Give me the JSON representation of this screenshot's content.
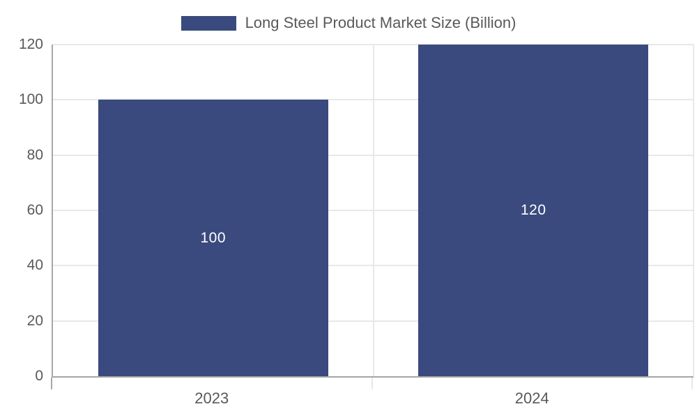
{
  "legend": {
    "label": "Long Steel Product Market Size (Billion)"
  },
  "chart_data": {
    "type": "bar",
    "title": "Long Steel Product Market Size (Billion)",
    "categories": [
      "2023",
      "2024"
    ],
    "values": [
      100,
      120
    ],
    "value_labels": [
      "100",
      "120"
    ],
    "xlabel": "",
    "ylabel": "",
    "ylim": [
      0,
      120
    ],
    "yticks": [
      0,
      20,
      40,
      60,
      80,
      100,
      120
    ],
    "grid": true,
    "legend_position": "top-center",
    "colors": {
      "bar": "#3A4A7E",
      "value_label": "#FFFFFF",
      "tick_label": "#595959",
      "axis_line": "#A6A6A6",
      "gridline": "#E8E8E8",
      "background": "#FFFFFF"
    }
  }
}
